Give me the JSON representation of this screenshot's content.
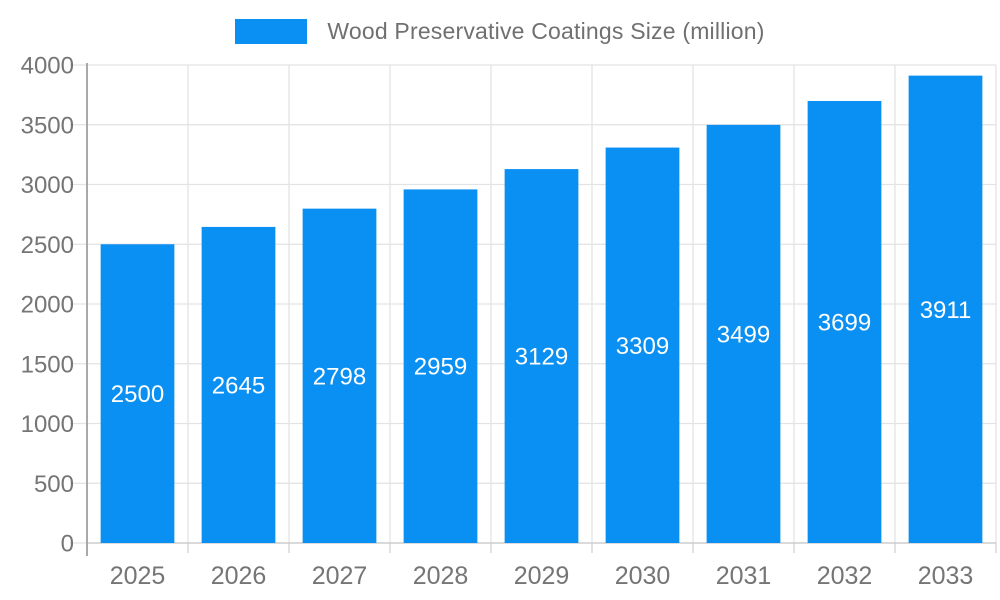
{
  "legend": {
    "label": "Wood Preservative Coatings Size (million)"
  },
  "colors": {
    "bar": "#0a8ff2",
    "bar_label_text": "#ffffff",
    "axis_text": "#757575",
    "legend_text": "#707070",
    "grid_line": "#e3e3e3",
    "y_axis_line": "#a9a9a9",
    "x_axis_line": "#cdcdcd",
    "tick": "#d6d6d6",
    "background": "#ffffff"
  },
  "chart_data": {
    "type": "bar",
    "title": "Wood Preservative Coatings Size (million)",
    "categories": [
      "2025",
      "2026",
      "2027",
      "2028",
      "2029",
      "2030",
      "2031",
      "2032",
      "2033"
    ],
    "series": [
      {
        "name": "Wood Preservative Coatings Size (million)",
        "values": [
          2500,
          2645,
          2798,
          2959,
          3129,
          3309,
          3499,
          3699,
          3911
        ]
      }
    ],
    "xlabel": "",
    "ylabel": "",
    "ylim": [
      0,
      4000
    ],
    "ytick_step": 500,
    "yticks": [
      0,
      500,
      1000,
      1500,
      2000,
      2500,
      3000,
      3500,
      4000
    ],
    "grid": true,
    "legend_position": "top",
    "value_labels": "inside-center"
  }
}
